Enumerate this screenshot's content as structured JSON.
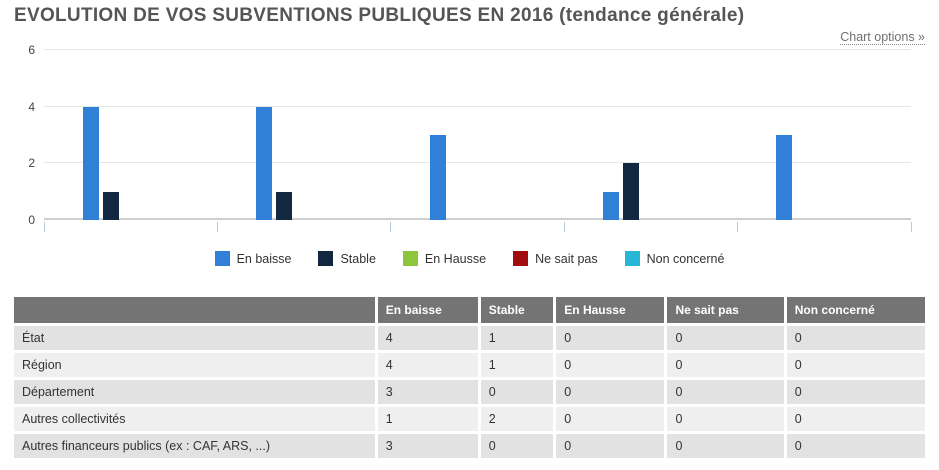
{
  "page": {
    "title": "EVOLUTION DE VOS SUBVENTIONS PUBLIQUES EN 2016 (tendance générale)",
    "chart_options_label": "Chart options »"
  },
  "chart_data": {
    "type": "bar",
    "title": "EVOLUTION DE VOS SUBVENTIONS PUBLIQUES EN 2016 (tendance générale)",
    "categories": [
      "État",
      "Région",
      "Département",
      "Autres collectivités",
      "Autres financeurs publics (ex : CAF, ARS, ...)"
    ],
    "series": [
      {
        "name": "En baisse",
        "color": "#3080d8",
        "values": [
          4,
          4,
          3,
          1,
          3
        ]
      },
      {
        "name": "Stable",
        "color": "#112840",
        "values": [
          1,
          1,
          0,
          2,
          0
        ]
      },
      {
        "name": "En Hausse",
        "color": "#8cc63c",
        "values": [
          0,
          0,
          0,
          0,
          0
        ]
      },
      {
        "name": "Ne sait pas",
        "color": "#a30c0c",
        "values": [
          0,
          0,
          0,
          0,
          0
        ]
      },
      {
        "name": "Non concerné",
        "color": "#28b6d6",
        "values": [
          0,
          0,
          0,
          0,
          0
        ]
      }
    ],
    "xlabel": "",
    "ylabel": "",
    "ylim": [
      0,
      6
    ],
    "yticks": [
      0,
      2,
      4,
      6
    ],
    "grid": true,
    "legend_position": "bottom",
    "x_axis_labels_visible": false
  },
  "table": {
    "columns": [
      "",
      "En baisse",
      "Stable",
      "En Hausse",
      "Ne sait pas",
      "Non concerné"
    ],
    "rows": [
      {
        "label": "État",
        "values": [
          4,
          1,
          0,
          0,
          0
        ]
      },
      {
        "label": "Région",
        "values": [
          4,
          1,
          0,
          0,
          0
        ]
      },
      {
        "label": "Département",
        "values": [
          3,
          0,
          0,
          0,
          0
        ]
      },
      {
        "label": "Autres collectivités",
        "values": [
          1,
          2,
          0,
          0,
          0
        ]
      },
      {
        "label": "Autres financeurs publics (ex : CAF, ARS, ...)",
        "values": [
          3,
          0,
          0,
          0,
          0
        ]
      }
    ],
    "column_widths_pct": [
      39.6,
      11.3,
      8.3,
      12.2,
      13.1,
      15.5
    ]
  },
  "colors": {
    "title_text": "#555555",
    "link_text": "#707070",
    "gridline": "#e6e6e6",
    "axis_line": "#cfcfcf",
    "axis_tick": "#b9cbdd",
    "table_header_bg": "#747474",
    "table_row_dark": "#e2e2e2",
    "table_row_light": "#efefef",
    "body_text": "#333333"
  }
}
